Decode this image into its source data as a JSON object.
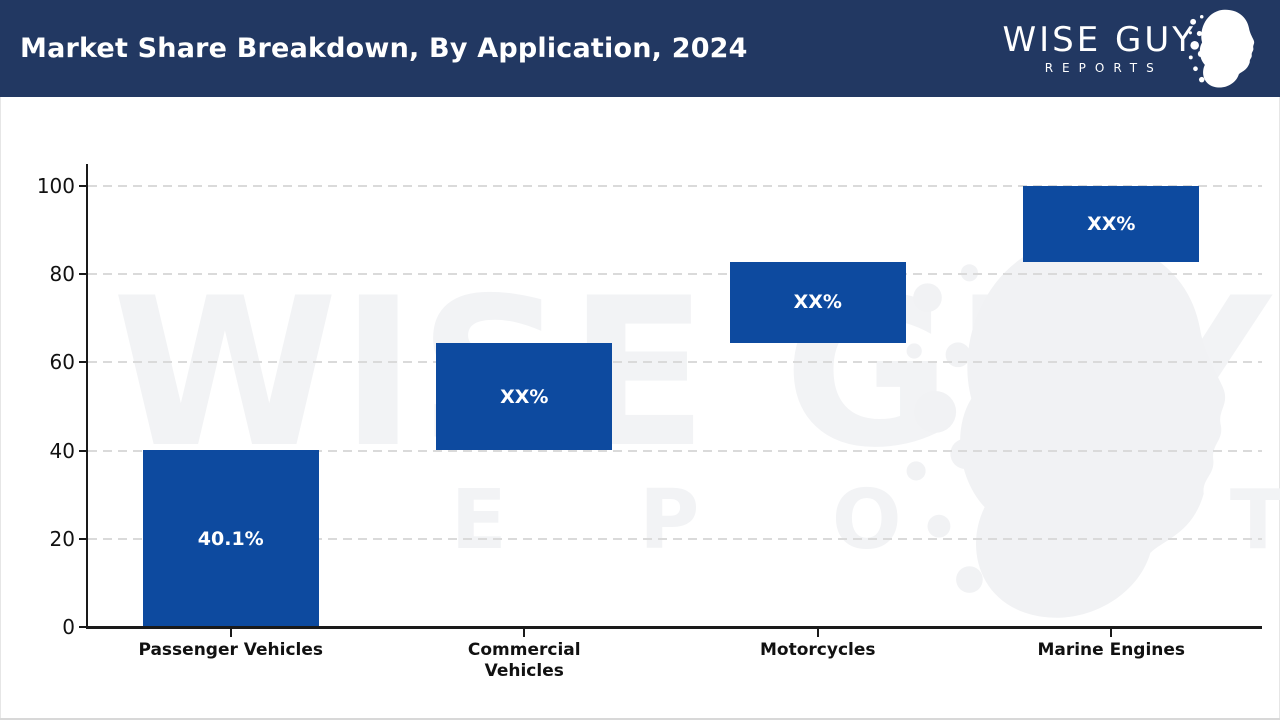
{
  "header": {
    "title": "Market Share Breakdown, By Application, 2024",
    "background_color": "#223862",
    "logo": {
      "line1": "WISE GUY",
      "line2": "REPORTS"
    }
  },
  "watermark": {
    "line1": "WISE GUY",
    "line2": "R E P O R T S"
  },
  "chart_data": {
    "type": "bar",
    "variant": "waterfall",
    "title": "Market Share Breakdown, By Application, 2024",
    "xlabel": "",
    "ylabel": "",
    "ylim": [
      0,
      100
    ],
    "yticks": [
      0,
      20,
      40,
      60,
      80,
      100
    ],
    "grid": "horizontal dashed",
    "legend": "none",
    "bar_color": "#0d4a9f",
    "label_color": "#ffffff",
    "categories": [
      "Passenger Vehicles",
      "Commercial Vehicles",
      "Motorcycles",
      "Marine Engines"
    ],
    "category_lines": [
      [
        "Passenger Vehicles"
      ],
      [
        "Commercial",
        "Vehicles"
      ],
      [
        "Motorcycles"
      ],
      [
        "Marine Engines"
      ]
    ],
    "segments": [
      {
        "category": "Passenger Vehicles",
        "start": 0,
        "end": 40.1,
        "value": 40.1,
        "label": "40.1%"
      },
      {
        "category": "Commercial Vehicles",
        "start": 40.1,
        "end": 64.4,
        "value": 24.3,
        "label": "XX%"
      },
      {
        "category": "Motorcycles",
        "start": 64.4,
        "end": 82.8,
        "value": 18.4,
        "label": "XX%"
      },
      {
        "category": "Marine Engines",
        "start": 82.8,
        "end": 100,
        "value": 17.2,
        "label": "XX%"
      }
    ]
  }
}
